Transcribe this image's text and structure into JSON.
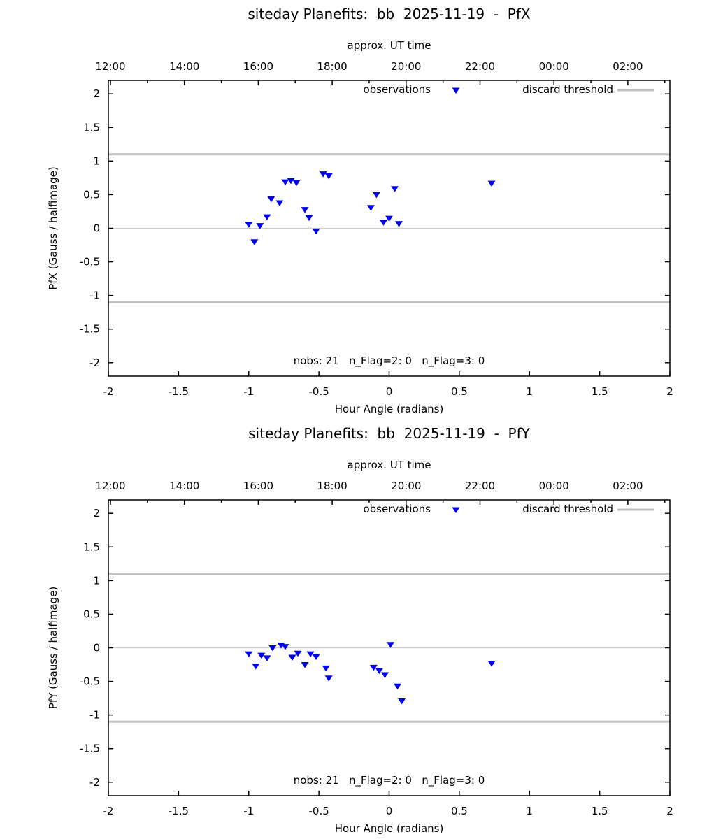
{
  "colors": {
    "marker": "#0000ee",
    "threshold": "#c0c0c0",
    "zero_line": "#cccccc",
    "frame": "#000000",
    "text": "#000000",
    "background": "#ffffff"
  },
  "chart_data": [
    {
      "type": "scatter",
      "title": "siteday Planefits:  bb  2025-11-19  -  PfX",
      "top_axis": {
        "label": "approx. UT time",
        "tick_labels": [
          "12:00",
          "14:00",
          "16:00",
          "18:00",
          "20:00",
          "22:00",
          "00:00",
          "02:00"
        ]
      },
      "xlabel": "Hour Angle (radians)",
      "ylabel": "PfX (Gauss / halfimage)",
      "xlim": [
        -2,
        2
      ],
      "ylim": [
        -2.2,
        2.2
      ],
      "x_ticks": {
        "values": [
          -2,
          -1.5,
          -1,
          -0.5,
          0,
          0.5,
          1,
          1.5,
          2
        ],
        "labels": [
          "-2",
          "-1.5",
          "-1",
          "-0.5",
          "0",
          "0.5",
          "1",
          "1.5",
          "2"
        ]
      },
      "y_ticks": {
        "values": [
          2,
          1.5,
          1,
          0.5,
          0,
          -0.5,
          -1,
          -1.5,
          -2
        ],
        "labels": [
          "2",
          "1.5",
          "1",
          "0.5",
          "0",
          "-0.5",
          "-1",
          "-1.5",
          "-2"
        ]
      },
      "legend": [
        {
          "label": "observations",
          "type": "marker"
        },
        {
          "label": "discard threshold",
          "type": "line"
        }
      ],
      "discard_thresholds": [
        1.1,
        -1.1
      ],
      "zero_line": 0,
      "stats_text": "nobs: 21   n_Flag=2: 0   n_Flag=3: 0",
      "series": [
        {
          "name": "observations",
          "marker": "triangle-down",
          "points": [
            [
              -1.0,
              0.06
            ],
            [
              -0.96,
              -0.2
            ],
            [
              -0.92,
              0.04
            ],
            [
              -0.87,
              0.17
            ],
            [
              -0.84,
              0.44
            ],
            [
              -0.78,
              0.38
            ],
            [
              -0.74,
              0.69
            ],
            [
              -0.7,
              0.71
            ],
            [
              -0.66,
              0.68
            ],
            [
              -0.6,
              0.28
            ],
            [
              -0.57,
              0.16
            ],
            [
              -0.52,
              -0.04
            ],
            [
              -0.47,
              0.81
            ],
            [
              -0.43,
              0.78
            ],
            [
              -0.13,
              0.31
            ],
            [
              -0.09,
              0.5
            ],
            [
              -0.04,
              0.09
            ],
            [
              0.0,
              0.15
            ],
            [
              0.04,
              0.59
            ],
            [
              0.07,
              0.07
            ],
            [
              0.73,
              0.67
            ]
          ]
        }
      ]
    },
    {
      "type": "scatter",
      "title": "siteday Planefits:  bb  2025-11-19  -  PfY",
      "top_axis": {
        "label": "approx. UT time",
        "tick_labels": [
          "12:00",
          "14:00",
          "16:00",
          "18:00",
          "20:00",
          "22:00",
          "00:00",
          "02:00"
        ]
      },
      "xlabel": "Hour Angle (radians)",
      "ylabel": "PfY (Gauss / halfimage)",
      "xlim": [
        -2,
        2
      ],
      "ylim": [
        -2.2,
        2.2
      ],
      "x_ticks": {
        "values": [
          -2,
          -1.5,
          -1,
          -0.5,
          0,
          0.5,
          1,
          1.5,
          2
        ],
        "labels": [
          "-2",
          "-1.5",
          "-1",
          "-0.5",
          "0",
          "0.5",
          "1",
          "1.5",
          "2"
        ]
      },
      "y_ticks": {
        "values": [
          2,
          1.5,
          1,
          0.5,
          0,
          -0.5,
          -1,
          -1.5,
          -2
        ],
        "labels": [
          "2",
          "1.5",
          "1",
          "0.5",
          "0",
          "-0.5",
          "-1",
          "-1.5",
          "-2"
        ]
      },
      "legend": [
        {
          "label": "observations",
          "type": "marker"
        },
        {
          "label": "discard threshold",
          "type": "line"
        }
      ],
      "discard_thresholds": [
        1.1,
        -1.1
      ],
      "zero_line": 0,
      "stats_text": "nobs: 21   n_Flag=2: 0   n_Flag=3: 0",
      "series": [
        {
          "name": "observations",
          "marker": "triangle-down",
          "points": [
            [
              -1.0,
              -0.09
            ],
            [
              -0.95,
              -0.27
            ],
            [
              -0.91,
              -0.11
            ],
            [
              -0.87,
              -0.15
            ],
            [
              -0.83,
              0.0
            ],
            [
              -0.77,
              0.04
            ],
            [
              -0.74,
              0.02
            ],
            [
              -0.69,
              -0.14
            ],
            [
              -0.65,
              -0.08
            ],
            [
              -0.6,
              -0.25
            ],
            [
              -0.56,
              -0.09
            ],
            [
              -0.52,
              -0.13
            ],
            [
              -0.45,
              -0.3
            ],
            [
              -0.43,
              -0.45
            ],
            [
              -0.11,
              -0.29
            ],
            [
              -0.07,
              -0.34
            ],
            [
              -0.03,
              -0.4
            ],
            [
              0.01,
              0.05
            ],
            [
              0.06,
              -0.57
            ],
            [
              0.09,
              -0.79
            ],
            [
              0.73,
              -0.23
            ]
          ]
        }
      ]
    }
  ]
}
